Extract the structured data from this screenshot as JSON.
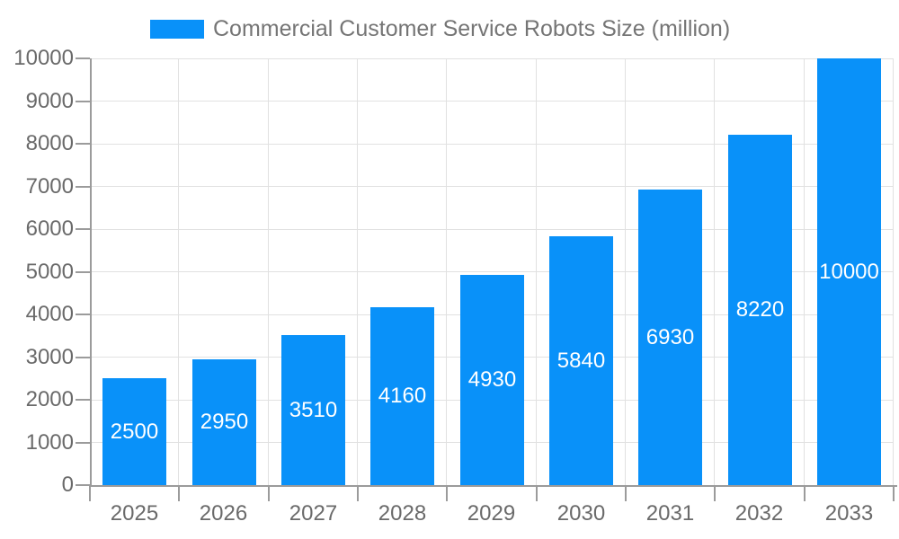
{
  "legend": {
    "label": "Commercial Customer Service Robots Size (million)"
  },
  "chart_data": {
    "type": "bar",
    "title": "Commercial Customer Service Robots Size (million)",
    "series_name": "Commercial Customer Service Robots Size (million)",
    "categories": [
      "2025",
      "2026",
      "2027",
      "2028",
      "2029",
      "2030",
      "2031",
      "2032",
      "2033"
    ],
    "values": [
      2500,
      2950,
      3510,
      4160,
      4930,
      5840,
      6930,
      8220,
      10000
    ],
    "bar_labels": [
      "2500",
      "2950",
      "3510",
      "4160",
      "4930",
      "5840",
      "6930",
      "8220",
      "10000"
    ],
    "y_ticks": [
      0,
      1000,
      2000,
      3000,
      4000,
      5000,
      6000,
      7000,
      8000,
      9000,
      10000
    ],
    "xlabel": "",
    "ylabel": "",
    "ylim": [
      0,
      10000
    ],
    "grid": true,
    "legend_position": "top-center",
    "bar_label_position": "inside-center",
    "colors": {
      "bar": "#0991F9",
      "bar_label": "#FFFFFF",
      "title_text": "#757575",
      "axis_text": "#6A6A6A",
      "axis_line": "#9B9B9B",
      "grid_line": "#E1E1E1",
      "background": "#FFFFFF"
    }
  }
}
